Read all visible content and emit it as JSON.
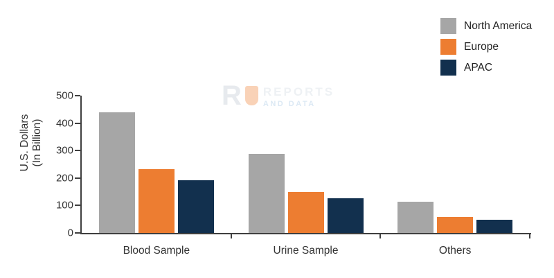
{
  "chart_data": {
    "type": "bar",
    "title": "",
    "categories": [
      "Blood Sample",
      "Urine Sample",
      "Others"
    ],
    "series": [
      {
        "name": "North America",
        "color": "#a6a6a6",
        "values": [
          440,
          288,
          114
        ]
      },
      {
        "name": "Europe",
        "color": "#ed7d31",
        "values": [
          232,
          150,
          58
        ]
      },
      {
        "name": "APAC",
        "color": "#12304e",
        "values": [
          192,
          127,
          48
        ]
      }
    ],
    "xlabel": "",
    "ylabel_line1": "U.S. Dollars",
    "ylabel_line2": "(In Billion)",
    "ylim": [
      0,
      500
    ],
    "yticks": [
      0,
      100,
      200,
      300,
      400,
      500
    ],
    "grid": false,
    "legend_position": "top-right"
  },
  "watermark": {
    "logo_letter": "R",
    "line1": "REPORTS",
    "line2": "AND DATA"
  },
  "colors": {
    "axis": "#3f3f3f",
    "text": "#333333",
    "background": "#ffffff"
  }
}
